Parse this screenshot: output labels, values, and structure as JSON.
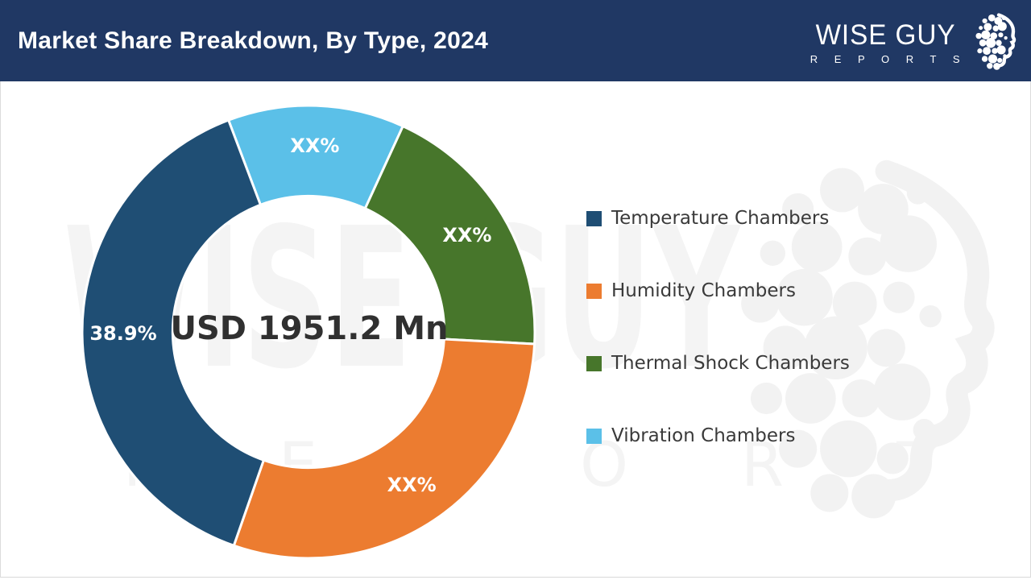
{
  "header": {
    "title": "Market Share Breakdown, By Type, 2024",
    "background_color": "#203864",
    "logo": {
      "wordmark": "WISE GUY",
      "subtitle": "R E P O R T S"
    }
  },
  "watermark": {
    "wordmark": "WISE GUY",
    "subtitle": "R E P O R T S"
  },
  "chart_data": {
    "type": "pie",
    "subtype": "donut",
    "title": "Market Share Breakdown, By Type, 2024",
    "center_label": "USD 1951.2 Mn",
    "legend_position": "right",
    "grid": false,
    "hole_ratio": 0.6,
    "start_angle_deg": -20.7,
    "direction": "clockwise",
    "segments": [
      {
        "label": "Temperature Chambers",
        "display_value": "38.9%",
        "pct": 38.9,
        "color": "#1F4E74"
      },
      {
        "label": "Humidity Chambers",
        "display_value": "XX%",
        "pct": 29.5,
        "color": "#EC7C30"
      },
      {
        "label": "Thermal Shock Chambers",
        "display_value": "XX%",
        "pct": 19.0,
        "color": "#47762B"
      },
      {
        "label": "Vibration Chambers",
        "display_value": "XX%",
        "pct": 12.6,
        "color": "#5BC0E8"
      }
    ]
  }
}
